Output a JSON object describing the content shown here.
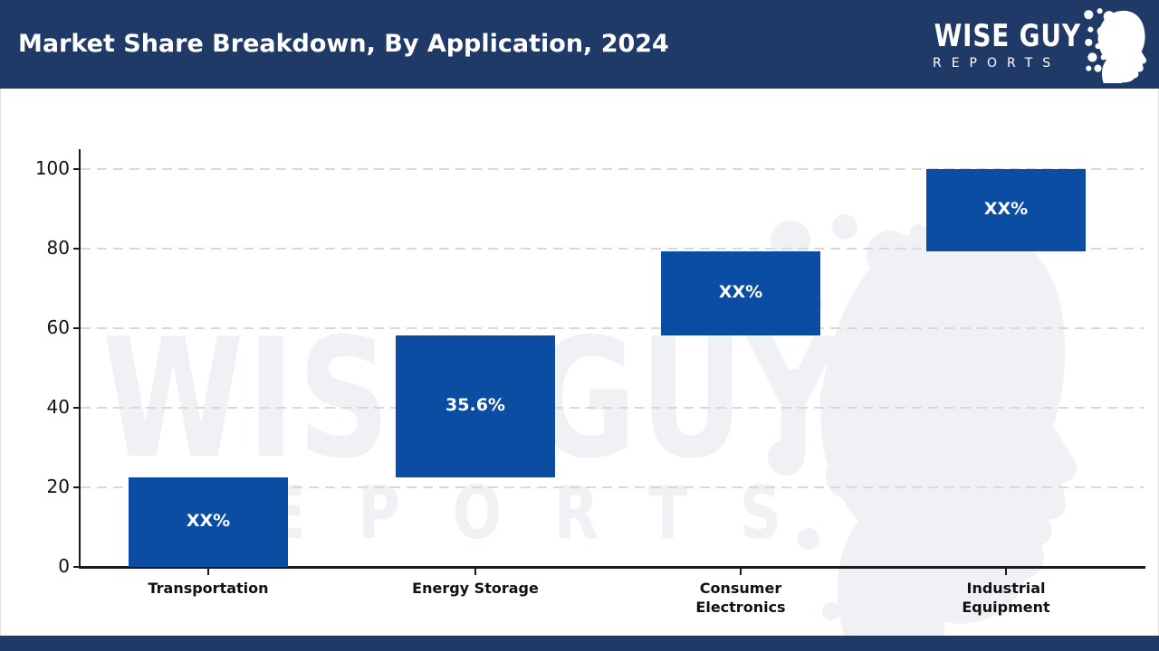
{
  "header": {
    "title": "Market Share Breakdown, By Application, 2024",
    "logo_line1": "WISE GUY",
    "logo_line2": "REPORTS"
  },
  "watermark": {
    "line1": "WISE GUY",
    "line2": "REPORTS"
  },
  "colors": {
    "header_bg": "#203a68",
    "footer_bg": "#203a68",
    "bar": "#0b4da2",
    "bar_label": "#ffffff",
    "grid": "#d9d9d9",
    "axis": "#1a1a1a",
    "watermark": "#f0f1f4",
    "tick_text": "#111111"
  },
  "chart_data": {
    "type": "bar",
    "variant": "floating-waterfall",
    "title": "Market Share Breakdown, By Application, 2024",
    "categories": [
      "Transportation",
      "Energy Storage",
      "Consumer Electronics",
      "Industrial Equipment"
    ],
    "tick_label_lines": [
      [
        "Transportation"
      ],
      [
        "Energy Storage"
      ],
      [
        "Consumer",
        "Electronics"
      ],
      [
        "Industrial",
        "Equipment"
      ]
    ],
    "segments": [
      {
        "category": "Transportation",
        "start": 0,
        "end": 22.5,
        "label": "XX%"
      },
      {
        "category": "Energy Storage",
        "start": 22.5,
        "end": 58.1,
        "label": "35.6%",
        "value": 35.6
      },
      {
        "category": "Consumer Electronics",
        "start": 58.1,
        "end": 79.3,
        "label": "XX%"
      },
      {
        "category": "Industrial Equipment",
        "start": 79.3,
        "end": 100,
        "label": "XX%"
      }
    ],
    "ylabel": "",
    "xlabel": "",
    "yticks": [
      0,
      20,
      40,
      60,
      80,
      100
    ],
    "ylim": [
      0,
      105
    ],
    "grid": "horizontal-dashed",
    "legend": "none",
    "bar_color": "#0b4da2"
  }
}
